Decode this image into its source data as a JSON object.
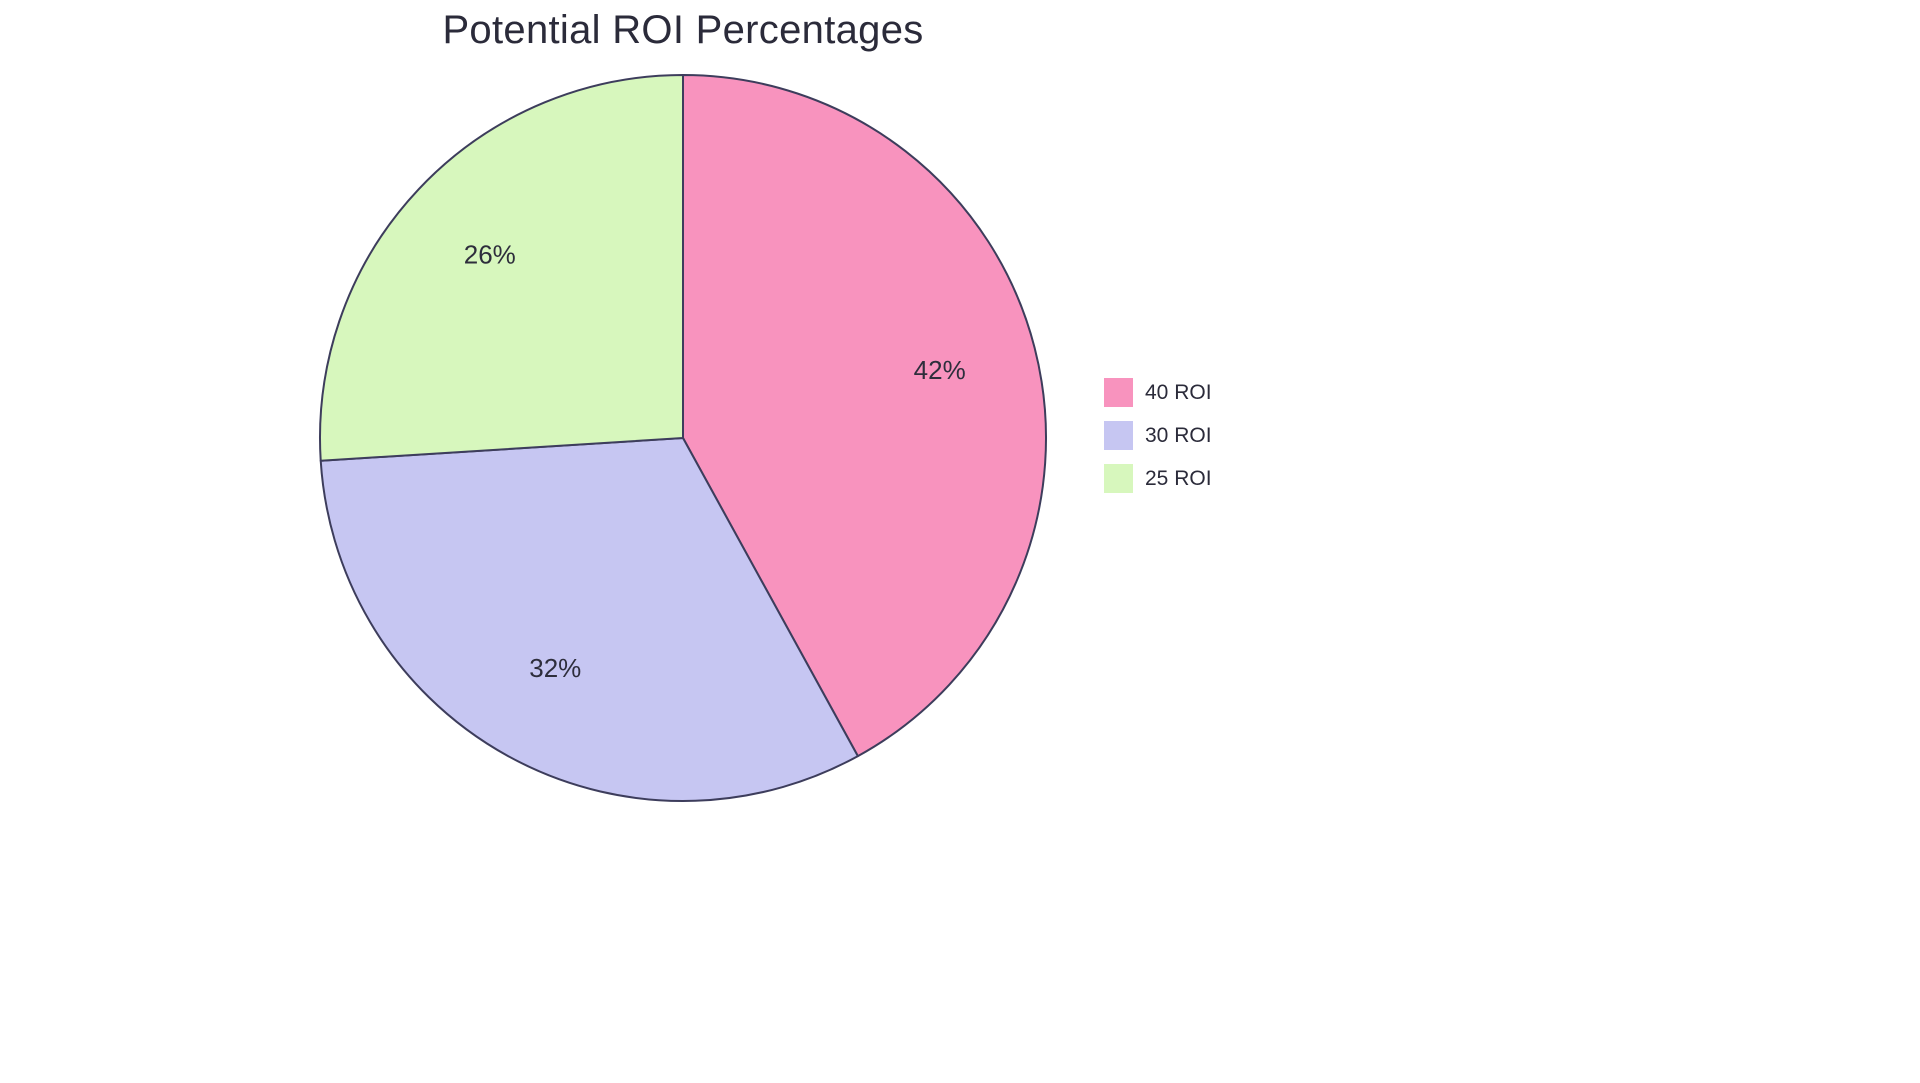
{
  "chart_data": {
    "type": "pie",
    "title": "Potential ROI Percentages",
    "slices": [
      {
        "label": "40 ROI",
        "value": 42,
        "display": "42%",
        "color": "#F893BE"
      },
      {
        "label": "30 ROI",
        "value": 32,
        "display": "32%",
        "color": "#C6C6F2"
      },
      {
        "label": "25 ROI",
        "value": 26,
        "display": "26%",
        "color": "#D7F7BD"
      }
    ],
    "start_angle_deg": 0,
    "direction": "clockwise",
    "legend_position": "right",
    "legend_labels": [
      "40 ROI",
      "30 ROI",
      "25 ROI"
    ],
    "outline_color": "#3D3D5C",
    "background_color": "#FFFFFF",
    "label_color": "#2E2E3C",
    "title_color": "#2B2B3A"
  }
}
